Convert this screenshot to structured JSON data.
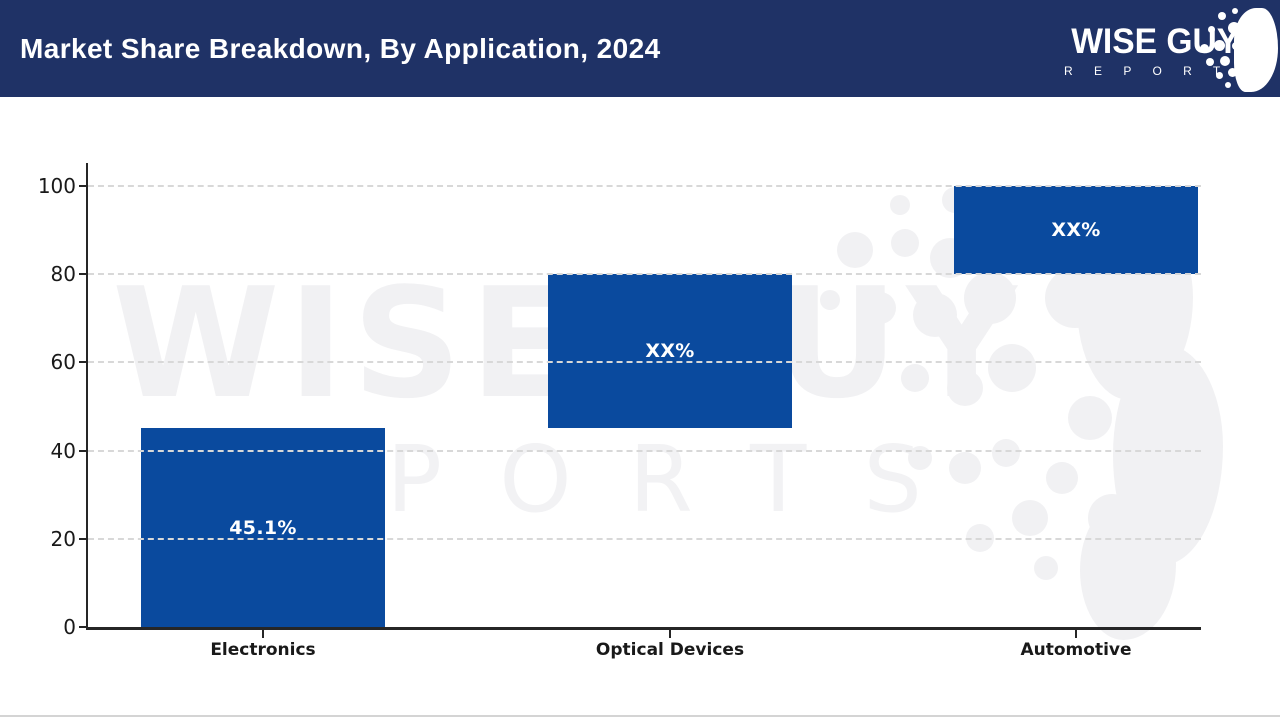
{
  "header": {
    "title": "Market Share Breakdown, By Application, 2024",
    "bg_color": "#1f3266"
  },
  "logo": {
    "wordmark": "WISE GUY",
    "sub": "R E P O R T S",
    "face_icon": "dotted-head-profile"
  },
  "watermark": {
    "line1": "WISE GUY",
    "line2": "R E P O R T S"
  },
  "chart_data": {
    "type": "bar",
    "subtype": "waterfall",
    "title": "Market Share Breakdown, By Application, 2024",
    "categories": [
      "Electronics",
      "Optical Devices",
      "Automotive"
    ],
    "segments": [
      {
        "category": "Electronics",
        "start": 0,
        "end": 45.1,
        "label": "45.1%"
      },
      {
        "category": "Optical Devices",
        "start": 45.1,
        "end": 80,
        "label": "XX%"
      },
      {
        "category": "Automotive",
        "start": 80,
        "end": 100,
        "label": "XX%"
      }
    ],
    "yticks": [
      0,
      20,
      40,
      60,
      80,
      100
    ],
    "ylim": [
      0,
      105
    ],
    "xlabel": "",
    "ylabel": "",
    "bar_color": "#0a4a9e",
    "grid": "horizontal-dashed",
    "gridline_color": "#d8d8d8",
    "axis_color": "#262626",
    "legend": "none"
  }
}
